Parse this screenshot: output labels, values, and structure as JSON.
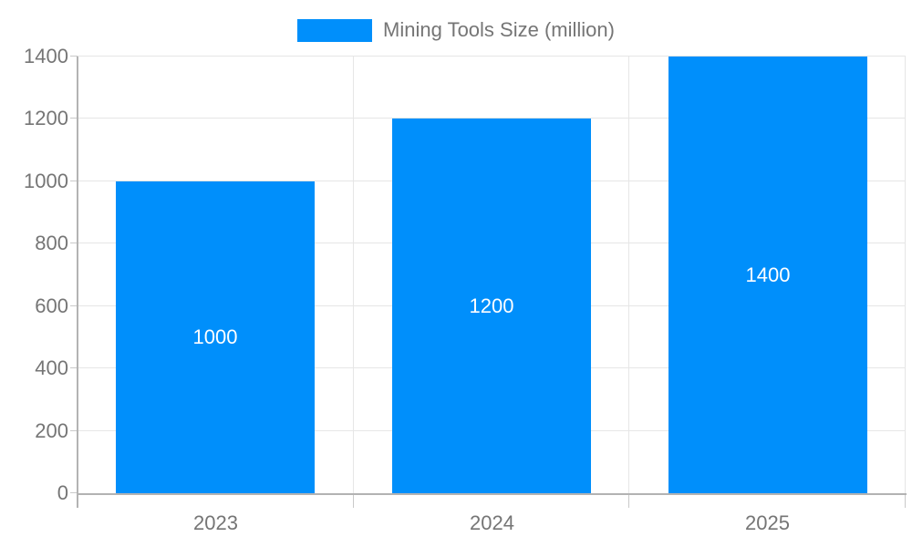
{
  "chart_data": {
    "type": "bar",
    "title": "",
    "legend": {
      "position": "top",
      "label": "Mining Tools Size (million)"
    },
    "categories": [
      "2023",
      "2024",
      "2025"
    ],
    "series": [
      {
        "name": "Mining Tools Size (million)",
        "values": [
          1000,
          1200,
          1400
        ]
      }
    ],
    "data_labels": [
      "1000",
      "1200",
      "1400"
    ],
    "xlabel": "",
    "ylabel": "",
    "ylim": [
      0,
      1400
    ],
    "ytick_step": 200,
    "yticks": [
      0,
      200,
      400,
      600,
      800,
      1000,
      1200,
      1400
    ],
    "grid": true,
    "legend_visible": true,
    "colors": {
      "bar": "#008ffb",
      "grid": "#e6e6e6",
      "axis": "#b3b3b3",
      "tick": "#c9c9c9",
      "axis_text": "#757575",
      "data_label_text": "#ffffff",
      "background": "#ffffff"
    }
  }
}
